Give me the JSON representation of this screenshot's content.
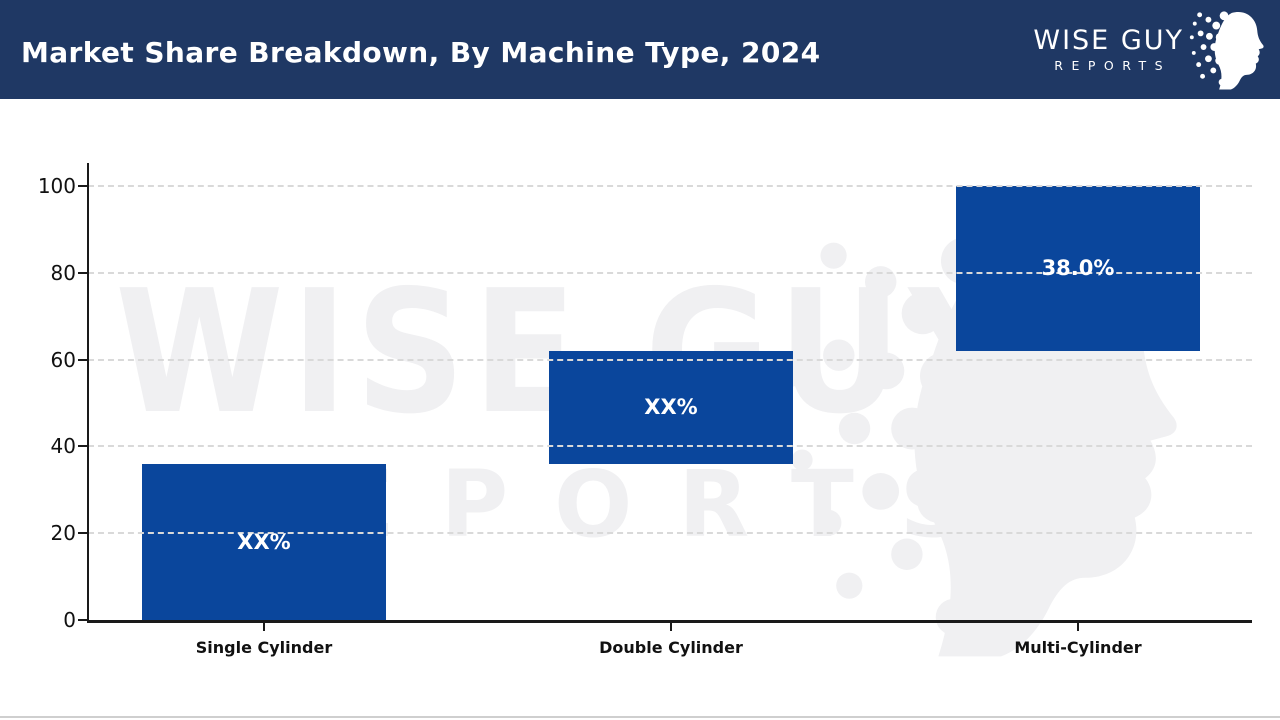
{
  "header": {
    "title": "Market Share Breakdown, By Machine Type, 2024",
    "logo": {
      "line1": "WISE GUY",
      "line2": "REPORTS"
    }
  },
  "watermark": {
    "line1": "WISE GUY",
    "line2": "REPORTS"
  },
  "chart_data": {
    "type": "bar",
    "subtype": "waterfall",
    "title": "Market Share Breakdown, By Machine Type, 2024",
    "categories": [
      "Single Cylinder",
      "Double Cylinder",
      "Multi-Cylinder"
    ],
    "series": [
      {
        "name": "Market Share",
        "segments": [
          {
            "category": "Single Cylinder",
            "start": 0,
            "end": 36,
            "label": "XX%"
          },
          {
            "category": "Double Cylinder",
            "start": 36,
            "end": 62,
            "label": "XX%"
          },
          {
            "category": "Multi-Cylinder",
            "start": 62,
            "end": 100,
            "label": "38.0%"
          }
        ]
      }
    ],
    "xlabel": "",
    "ylabel": "",
    "yticks": [
      0,
      20,
      40,
      60,
      80,
      100
    ],
    "ylim": [
      0,
      105
    ],
    "grid": "horizontal-dashed",
    "legend": "none",
    "bar_color": "#0a469c",
    "colors": {
      "header_bg": "#1f3864",
      "bar": "#0a469c",
      "grid": "#d9d9d9",
      "axis": "#1a1a1a",
      "bar_label_text": "#ffffff",
      "title_text": "#ffffff",
      "watermark": "#f0f0f2"
    }
  }
}
